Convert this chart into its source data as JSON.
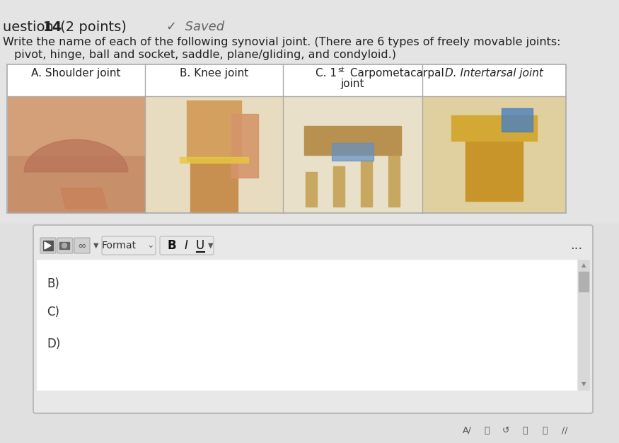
{
  "background_color": "#c8c8c8",
  "content_bg": "#e8e8e8",
  "title_text_normal": "uestion ",
  "title_bold": "14",
  "title_rest": " (2 points)",
  "saved_text": "✓  Saved",
  "instruction_line1": "Write the name of each of the following synovial joint. (There are 6 types of freely movable joints:",
  "instruction_line2": "pivot, hinge, ball and socket, saddle, plane/gliding, and condyloid.)",
  "col_headers_A": "A. Shoulder joint",
  "col_headers_B": "B. Knee joint",
  "col_headers_C1": "C. 1",
  "col_headers_C2": "st",
  "col_headers_C3": " Carpometacarpal",
  "col_headers_C4": "joint",
  "col_headers_D": "D. Intertarsal joint",
  "answer_labels": [
    "B)",
    "C)",
    "D)"
  ],
  "table_bg": "#ffffff",
  "table_border": "#aaaaaa",
  "textbox_border": "#bbbbbb",
  "toolbar_bg": "#f2f2f2",
  "img_A_color": "#c8825a",
  "img_B_color": "#d4a060",
  "img_C_color": "#d4b870",
  "img_D_color": "#d4a855",
  "scrollbar_color": "#b0b0b0",
  "font_size_title": 14,
  "font_size_instruction": 11.5,
  "font_size_header": 11,
  "font_size_answer": 12,
  "font_size_toolbar": 11
}
